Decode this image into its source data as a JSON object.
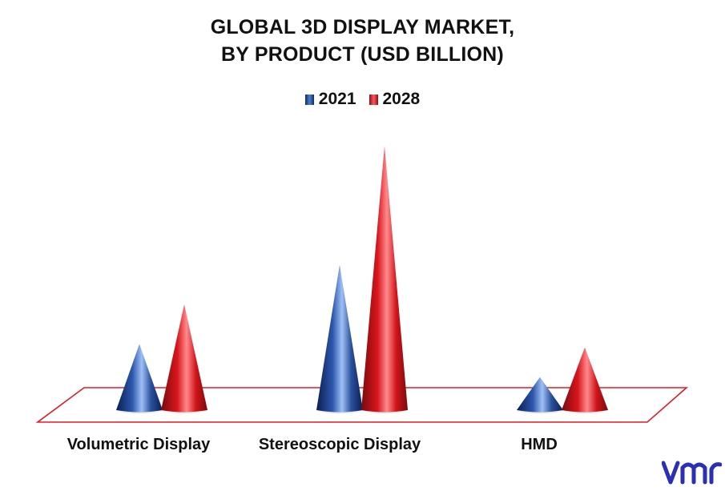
{
  "chart_data": {
    "type": "bar",
    "title_line1": "GLOBAL 3D DISPLAY MARKET,",
    "title_line2": "BY PRODUCT (USD BILLION)",
    "categories": [
      "Volumetric Display",
      "Stereoscopic Display",
      "HMD"
    ],
    "series": [
      {
        "name": "2021",
        "values": [
          1.0,
          2.2,
          0.5
        ],
        "color": "#1f3f86"
      },
      {
        "name": "2028",
        "values": [
          1.6,
          4.0,
          0.95
        ],
        "color": "#d4141a"
      }
    ],
    "ylim": [
      0,
      4.0
    ],
    "grid": false,
    "legend_position": "top-center"
  },
  "colors": {
    "floor": "#e11b22"
  },
  "logo": {
    "text": "vmr",
    "icon": "vmr-logo-icon",
    "color": "#2a2fb5"
  }
}
